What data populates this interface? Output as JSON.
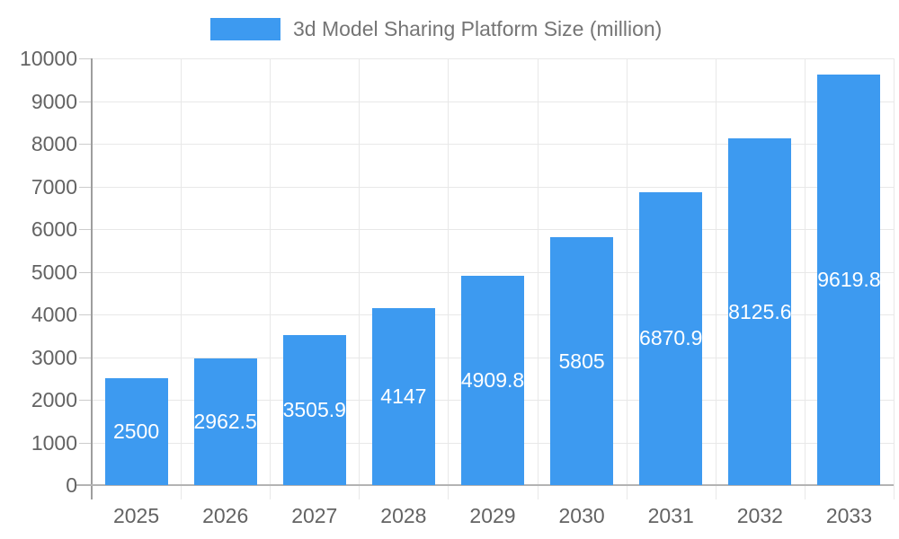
{
  "chart_data": {
    "type": "bar",
    "title": "3d Model Sharing Platform Size (million)",
    "legend_position": "top",
    "categories": [
      "2025",
      "2026",
      "2027",
      "2028",
      "2029",
      "2030",
      "2031",
      "2032",
      "2033"
    ],
    "values": [
      2500,
      2962.5,
      3505.9,
      4147,
      4909.8,
      5805,
      6870.9,
      8125.6,
      9619.8
    ],
    "value_labels": [
      "2500",
      "2962.5",
      "3505.9",
      "4147",
      "4909.8",
      "5805",
      "6870.9",
      "8125.6",
      "9619.8"
    ],
    "xlabel": "",
    "ylabel": "",
    "ylim": [
      0,
      10000
    ],
    "ytick_step": 1000,
    "ytick_labels": [
      "0",
      "1000",
      "2000",
      "3000",
      "4000",
      "5000",
      "6000",
      "7000",
      "8000",
      "9000",
      "10000"
    ],
    "grid": true,
    "colors": {
      "bar": "#3D9AF0",
      "value_label": "#FFFFFF",
      "gridline": "#E8E8E8",
      "axis_line": "#9E9E9E",
      "baseline": "#B3B3B3",
      "tick_label": "#636363",
      "legend_text": "#757575",
      "background": "#FFFFFF"
    }
  }
}
